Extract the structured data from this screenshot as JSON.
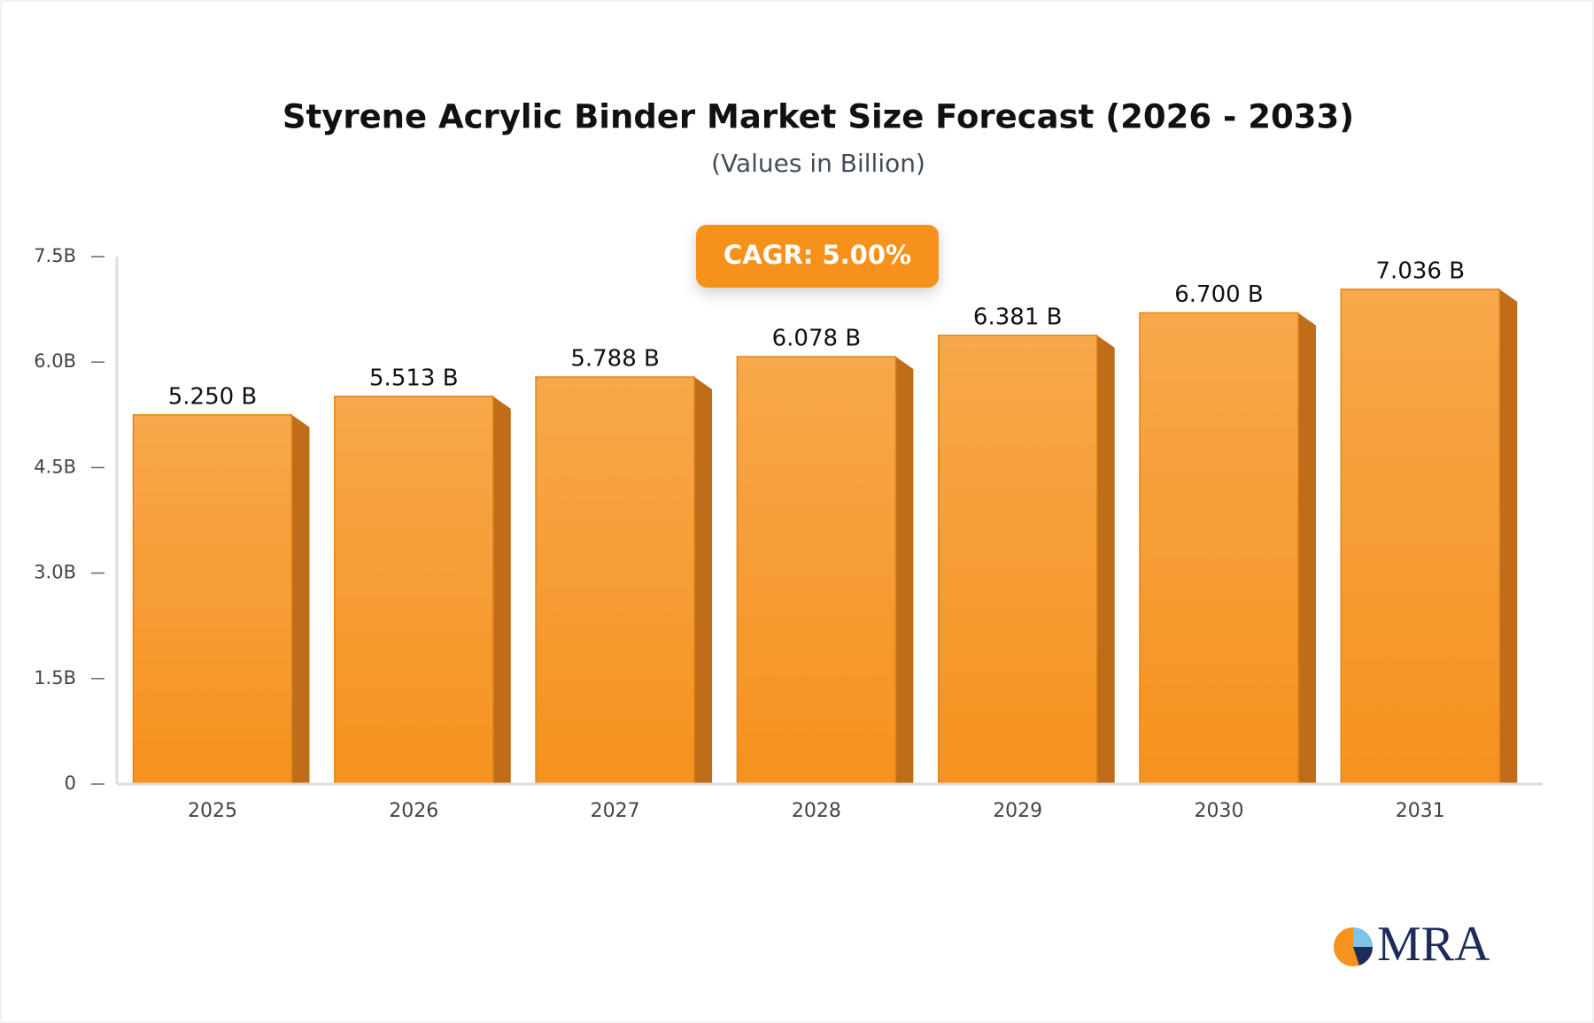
{
  "chart_data": {
    "type": "bar",
    "title": "Styrene Acrylic Binder Market Size Forecast (2026 - 2033)",
    "subtitle": "(Values in Billion)",
    "annotation": "CAGR: 5.00%",
    "watermark": "MRA",
    "categories": [
      "2025",
      "2026",
      "2027",
      "2028",
      "2029",
      "2030",
      "2031"
    ],
    "values": [
      5.25,
      5.513,
      5.788,
      6.078,
      6.381,
      6.7,
      7.036
    ],
    "value_labels": [
      "5.250 B",
      "5.513 B",
      "5.788 B",
      "6.078 B",
      "6.381 B",
      "6.700 B",
      "7.036 B"
    ],
    "color": "#f6961f",
    "ylim": [
      0,
      7.5
    ],
    "yticks": [
      0,
      {
        "value": 1.5,
        "label": "1.5B"
      },
      {
        "value": 3.0,
        "label": "3.0B"
      },
      {
        "value": 4.5,
        "label": "4.5B"
      },
      {
        "value": 6.0,
        "label": "6.0B"
      },
      {
        "value": 7.5,
        "label": "7.5B"
      }
    ],
    "grid": false
  }
}
